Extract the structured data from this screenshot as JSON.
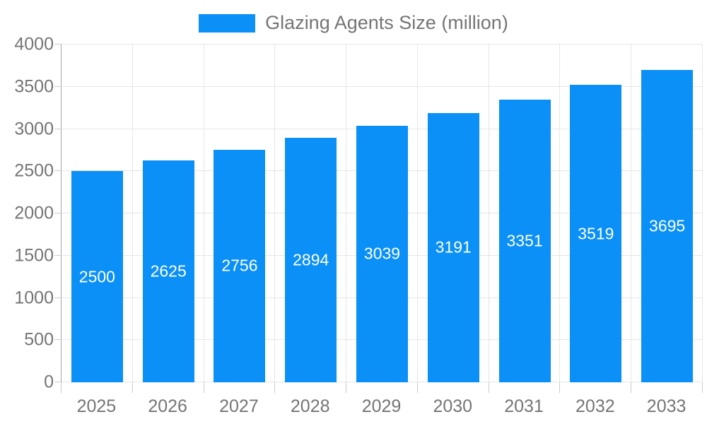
{
  "chart_data": {
    "type": "bar",
    "title": "Glazing Agents Size (million)",
    "categories": [
      "2025",
      "2026",
      "2027",
      "2028",
      "2029",
      "2030",
      "2031",
      "2032",
      "2033"
    ],
    "values": [
      2500,
      2625,
      2756,
      2894,
      3039,
      3191,
      3351,
      3519,
      3695
    ],
    "xlabel": "",
    "ylabel": "",
    "ylim": [
      0,
      4000
    ],
    "yticks": [
      0,
      500,
      1000,
      1500,
      2000,
      2500,
      3000,
      3500,
      4000
    ],
    "grid": "on",
    "legend_position": "top-center",
    "value_labels": "inside-center",
    "colors": {
      "bar": "#0a90f6",
      "value_label_text": "#ffffff",
      "axis_text": "#757575",
      "grid_line": "#e6e6e6",
      "axis_line": "#a6a6a6",
      "tick_mark": "#cccccc",
      "background": "#ffffff"
    }
  }
}
